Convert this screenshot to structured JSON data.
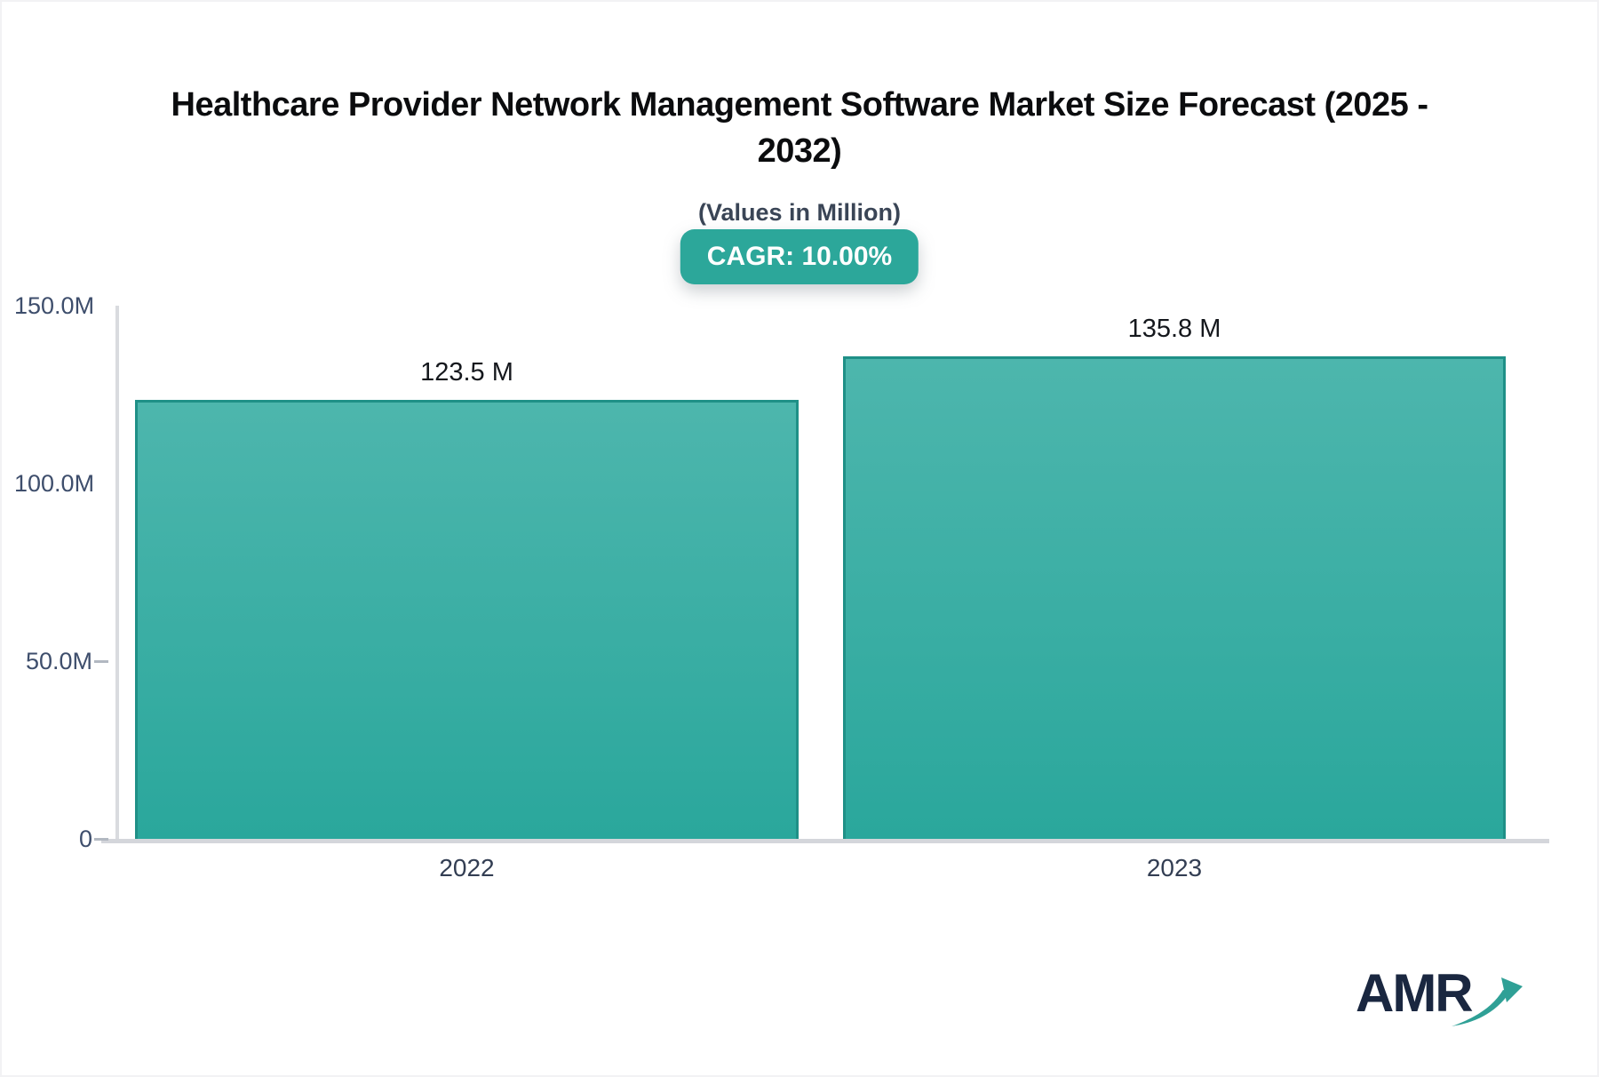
{
  "header": {
    "title_line1": "Healthcare Provider Network Management Software Market Size Forecast (2025 -",
    "title_line2": "2032)",
    "subtitle": "(Values in Million)",
    "cagr_badge": "CAGR: 10.00%"
  },
  "chart_data": {
    "type": "bar",
    "title": "Healthcare Provider Network Management Software Market Size Forecast (2025 - 2032)",
    "subtitle": "(Values in Million)",
    "cagr": "10.00%",
    "categories": [
      "2022",
      "2023"
    ],
    "values": [
      123.5,
      135.8
    ],
    "value_labels": [
      "123.5 M",
      "135.8 M"
    ],
    "xlabel": "",
    "ylabel": "",
    "ylim": [
      0,
      150
    ],
    "yticks": [
      {
        "label": "150.0M",
        "value": 150,
        "dash": false
      },
      {
        "label": "100.0M",
        "value": 100,
        "dash": false
      },
      {
        "label": "50.0M",
        "value": 50,
        "dash": true
      },
      {
        "label": "0",
        "value": 0,
        "dash": true
      }
    ],
    "grid": false,
    "legend": false,
    "bar_color_top": "#4db6ad",
    "bar_color_bottom": "#2aa79c",
    "bar_border_color": "#1f9087"
  },
  "logo": {
    "text": "AMR",
    "arrow_color": "#2fa096",
    "text_color": "#1a2740"
  },
  "colors": {
    "badge_bg": "#2ca79a",
    "axis_line": "#d6d8dc",
    "ytick_text": "#3e4e6c",
    "xtick_text": "#333e53"
  }
}
